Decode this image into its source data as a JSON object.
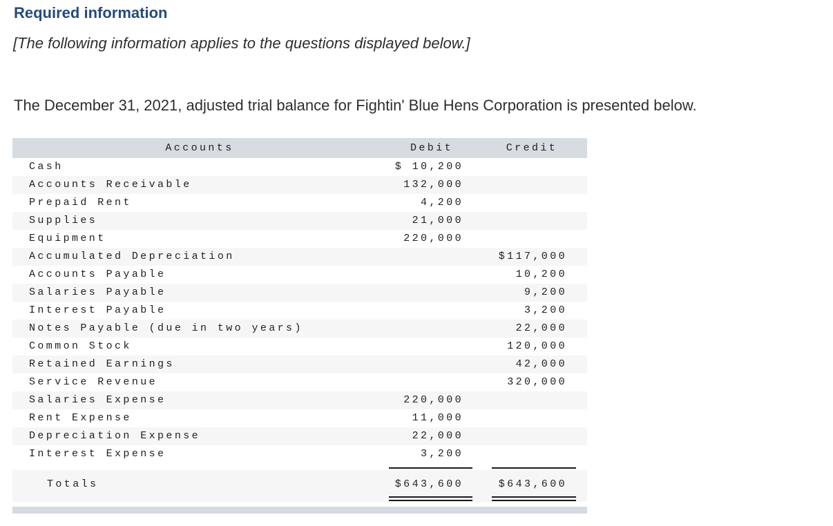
{
  "header": {
    "title": "Required information",
    "note": "[The following information applies to the questions displayed below.]"
  },
  "intro": "The December 31, 2021, adjusted trial balance for Fightin' Blue Hens Corporation is presented below.",
  "colors": {
    "heading": "#254a7e",
    "table_header_bg": "#d7dbe2",
    "alt_row_bg": "#f6f6f7",
    "bottom_bar_bg": "#d6dae1",
    "rule": "#1a1a1a"
  },
  "table": {
    "columns": {
      "accounts": "Accounts",
      "debit": "Debit",
      "credit": "Credit"
    },
    "rows": [
      {
        "account": "Cash",
        "debit": "$ 10,200",
        "credit": ""
      },
      {
        "account": "Accounts Receivable",
        "debit": "132,000",
        "credit": ""
      },
      {
        "account": "Prepaid Rent",
        "debit": "4,200",
        "credit": ""
      },
      {
        "account": "Supplies",
        "debit": "21,000",
        "credit": ""
      },
      {
        "account": "Equipment",
        "debit": "220,000",
        "credit": ""
      },
      {
        "account": "Accumulated Depreciation",
        "debit": "",
        "credit": "$117,000"
      },
      {
        "account": "Accounts Payable",
        "debit": "",
        "credit": "10,200"
      },
      {
        "account": "Salaries Payable",
        "debit": "",
        "credit": "9,200"
      },
      {
        "account": "Interest Payable",
        "debit": "",
        "credit": "3,200"
      },
      {
        "account": "Notes Payable (due in two years)",
        "debit": "",
        "credit": "22,000"
      },
      {
        "account": "Common Stock",
        "debit": "",
        "credit": "120,000"
      },
      {
        "account": "Retained Earnings",
        "debit": "",
        "credit": "42,000"
      },
      {
        "account": "Service Revenue",
        "debit": "",
        "credit": "320,000"
      },
      {
        "account": "Salaries Expense",
        "debit": "220,000",
        "credit": ""
      },
      {
        "account": "Rent Expense",
        "debit": "11,000",
        "credit": ""
      },
      {
        "account": "Depreciation Expense",
        "debit": "22,000",
        "credit": ""
      },
      {
        "account": "Interest Expense",
        "debit": "3,200",
        "credit": "",
        "rule": "single"
      }
    ],
    "totals": {
      "label": "Totals",
      "debit": "$643,600",
      "credit": "$643,600"
    }
  }
}
